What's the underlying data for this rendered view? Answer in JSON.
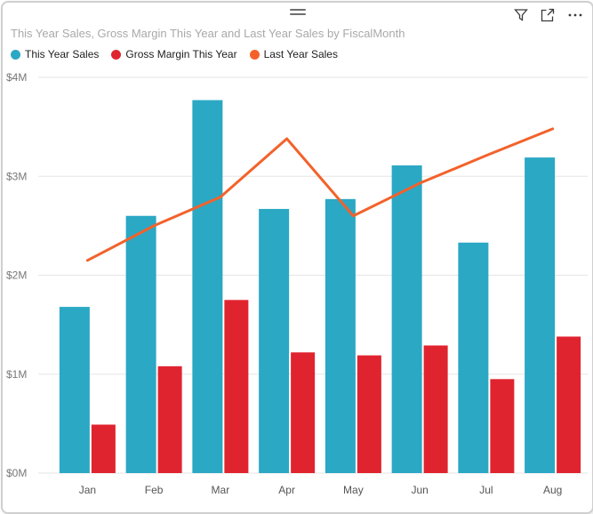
{
  "header": {
    "title": "This Year Sales, Gross Margin This Year and Last Year Sales by FiscalMonth"
  },
  "toolbar": {
    "filter": "filter",
    "focus_mode": "focus-mode",
    "more_options": "more-options"
  },
  "legend": {
    "items": [
      {
        "label": "This Year Sales",
        "color": "#2BA8C4"
      },
      {
        "label": "Gross Margin This Year",
        "color": "#E0242F"
      },
      {
        "label": "Last Year Sales",
        "color": "#F3622B"
      }
    ]
  },
  "chart_data": {
    "type": "bar",
    "subtype": "clustered-column-with-line",
    "title": "This Year Sales, Gross Margin This Year and Last Year Sales by FiscalMonth",
    "categories": [
      "Jan",
      "Feb",
      "Mar",
      "Apr",
      "May",
      "Jun",
      "Jul",
      "Aug"
    ],
    "bar_series": [
      {
        "name": "This Year Sales",
        "color": "#2BA8C4",
        "values": [
          1.68,
          2.6,
          3.77,
          2.67,
          2.77,
          3.11,
          2.33,
          3.19
        ]
      },
      {
        "name": "Gross Margin This Year",
        "color": "#E0242F",
        "values": [
          0.49,
          1.08,
          1.75,
          1.22,
          1.19,
          1.29,
          0.95,
          1.38
        ]
      }
    ],
    "line_series": [
      {
        "name": "Last Year Sales",
        "color": "#F3622B",
        "values": [
          2.15,
          2.5,
          2.79,
          3.38,
          2.6,
          2.93,
          3.21,
          3.48
        ]
      }
    ],
    "xlabel": "FiscalMonth",
    "ylabel": "",
    "ylim": [
      0,
      4
    ],
    "y_ticks": [
      "$0M",
      "$1M",
      "$2M",
      "$3M",
      "$4M"
    ],
    "y_tick_values": [
      0,
      1,
      2,
      3,
      4
    ],
    "unit": "$M",
    "grid": "horizontal",
    "legend_position": "top-left"
  }
}
